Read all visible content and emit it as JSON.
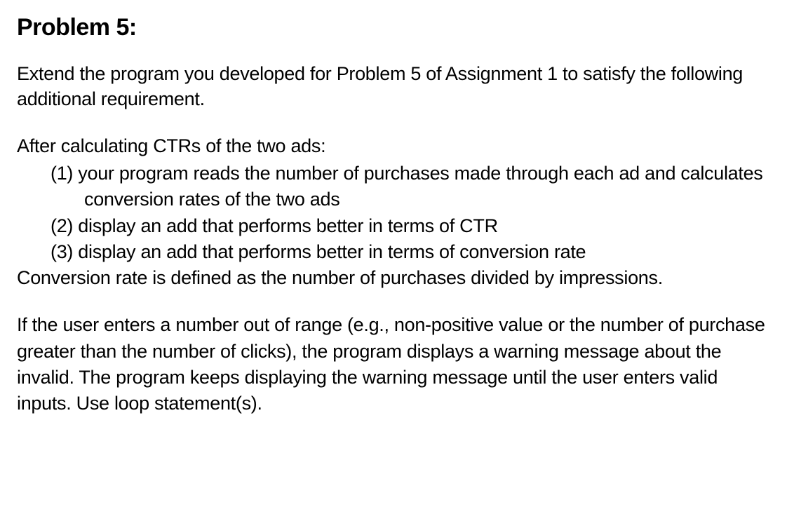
{
  "title": "Problem 5:",
  "intro": "Extend the program you developed for Problem 5 of Assignment 1 to satisfy the following additional requirement.",
  "section_lead": "After calculating CTRs of the two ads:",
  "items": {
    "one_a": "(1) your program reads the number of purchases made through each ad and calculates",
    "one_b": "conversion rates of the two ads",
    "two": "(2) display an add that performs better in terms of CTR",
    "three": "(3) display an add that performs better in terms of conversion rate"
  },
  "tail": "Conversion rate is defined as the number of purchases divided by impressions.",
  "final": "If the user enters a number out of range (e.g., non-positive value or the number of purchase greater than the number of clicks), the program displays a warning message about the invalid. The program keeps displaying the warning message until the user enters valid inputs. Use loop statement(s)."
}
